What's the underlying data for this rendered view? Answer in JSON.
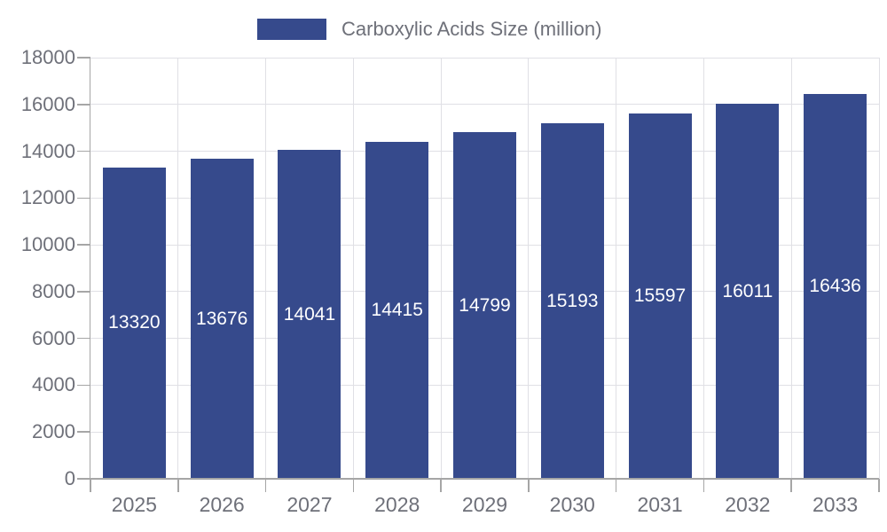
{
  "chart_data": {
    "type": "bar",
    "title": "Carboxylic Acids Size (million)",
    "legend_entries": [
      "Carboxylic Acids Size (million)"
    ],
    "categories": [
      "2025",
      "2026",
      "2027",
      "2028",
      "2029",
      "2030",
      "2031",
      "2032",
      "2033"
    ],
    "values": [
      13320,
      13676,
      14041,
      14415,
      14799,
      15193,
      15597,
      16011,
      16436
    ],
    "xlabel": "",
    "ylabel": "",
    "ylim": [
      0,
      18000
    ],
    "ytick_interval": 2000,
    "yticks": [
      0,
      2000,
      4000,
      6000,
      8000,
      10000,
      12000,
      14000,
      16000,
      18000
    ],
    "grid": true,
    "legend_position": "top",
    "bar_labels_position": "inside-middle",
    "colors": {
      "bar": "#364A8C",
      "bar_label": "#FFFFFF",
      "axis_text": "#6E7079",
      "grid_line": "#E0E0E5",
      "axis_line": "#A6A6A6",
      "background": "#FFFFFF"
    }
  }
}
